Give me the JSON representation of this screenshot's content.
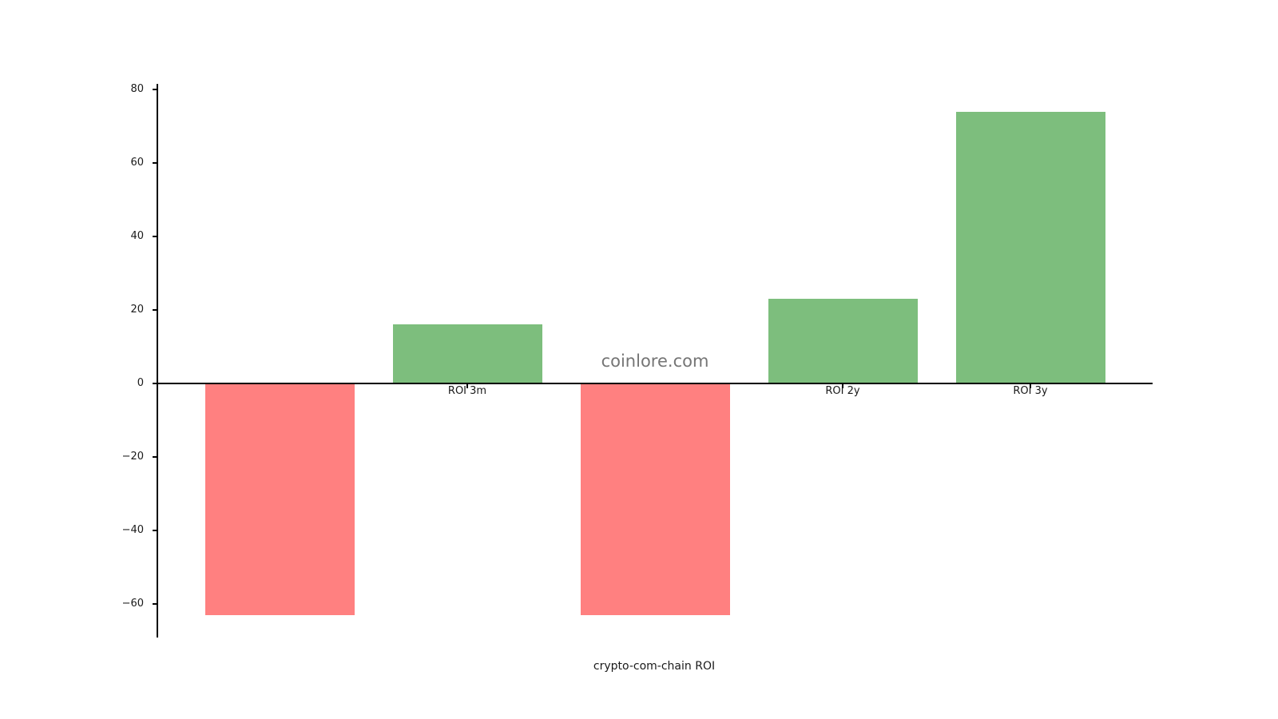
{
  "chart_data": {
    "type": "bar",
    "title": "crypto-com-chain ROI",
    "watermark": "coinlore.com",
    "categories": [
      "",
      "ROI 3m",
      "",
      "ROI 2y",
      "ROI 3y"
    ],
    "values": [
      -63,
      16,
      -63,
      23,
      74
    ],
    "bar_colors": [
      "#ff8080",
      "#7dbe7d",
      "#ff8080",
      "#7dbe7d",
      "#7dbe7d"
    ],
    "positive_color": "#7dbe7d",
    "negative_color": "#ff8080",
    "y_ticks": [
      80,
      60,
      40,
      20,
      0,
      -20,
      -40,
      -60
    ],
    "ylim": [
      -69,
      81.5
    ],
    "xlabel": "",
    "ylabel": "",
    "grid": false,
    "legend": false,
    "axis_color": "#000000",
    "tick_label_color": "#1a1a1a",
    "title_color": "#1a1a1a",
    "watermark_color": "#757575",
    "background_color": "#ffffff"
  }
}
